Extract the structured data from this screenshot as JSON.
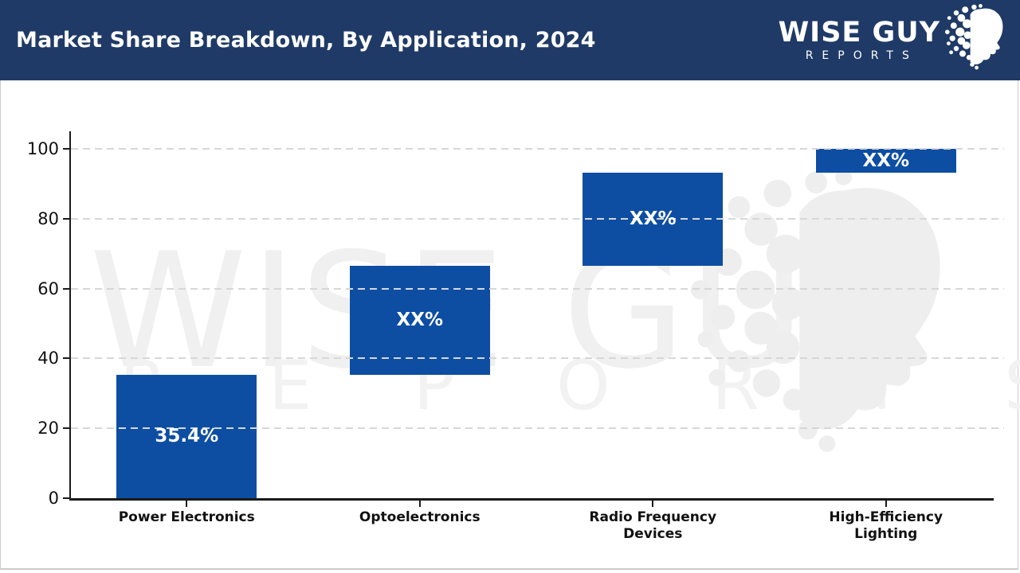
{
  "header": {
    "title": "Market Share Breakdown, By Application, 2024",
    "logo": {
      "line1": "WISE GUY",
      "line2": "REPORTS"
    }
  },
  "watermark": {
    "line1": "WISE GUY",
    "line2": "R E P O R T S"
  },
  "colors": {
    "header_bg": "#1f3a66",
    "bar": "#0d4ea3",
    "grid": "#d7d7d7",
    "axis": "#1a1a1a",
    "bar_label": "#ffffff",
    "watermark": "#f0f0f0",
    "border": "#cccccc"
  },
  "chart_data": {
    "type": "bar",
    "subtype": "waterfall",
    "title": "Market Share Breakdown, By Application, 2024",
    "categories": [
      [
        "Power Electronics"
      ],
      [
        "Optoelectronics"
      ],
      [
        "Radio Frequency",
        "Devices"
      ],
      [
        "High-Efficiency",
        "Lighting"
      ]
    ],
    "segments": [
      {
        "category": "Power Electronics",
        "start": 0,
        "end": 35.4,
        "label": "35.4%"
      },
      {
        "category": "Optoelectronics",
        "start": 35.4,
        "end": 66.5,
        "label": "XX%"
      },
      {
        "category": "Radio Frequency Devices",
        "start": 66.5,
        "end": 93.2,
        "label": "XX%"
      },
      {
        "category": "High-Efficiency Lighting",
        "start": 93.2,
        "end": 100,
        "label": "XX%"
      }
    ],
    "ylim": [
      0,
      100
    ],
    "yticks": [
      0,
      20,
      40,
      60,
      80,
      100
    ],
    "xlabel": "",
    "ylabel": "",
    "grid": "horizontal-dashed",
    "legend": "none"
  }
}
